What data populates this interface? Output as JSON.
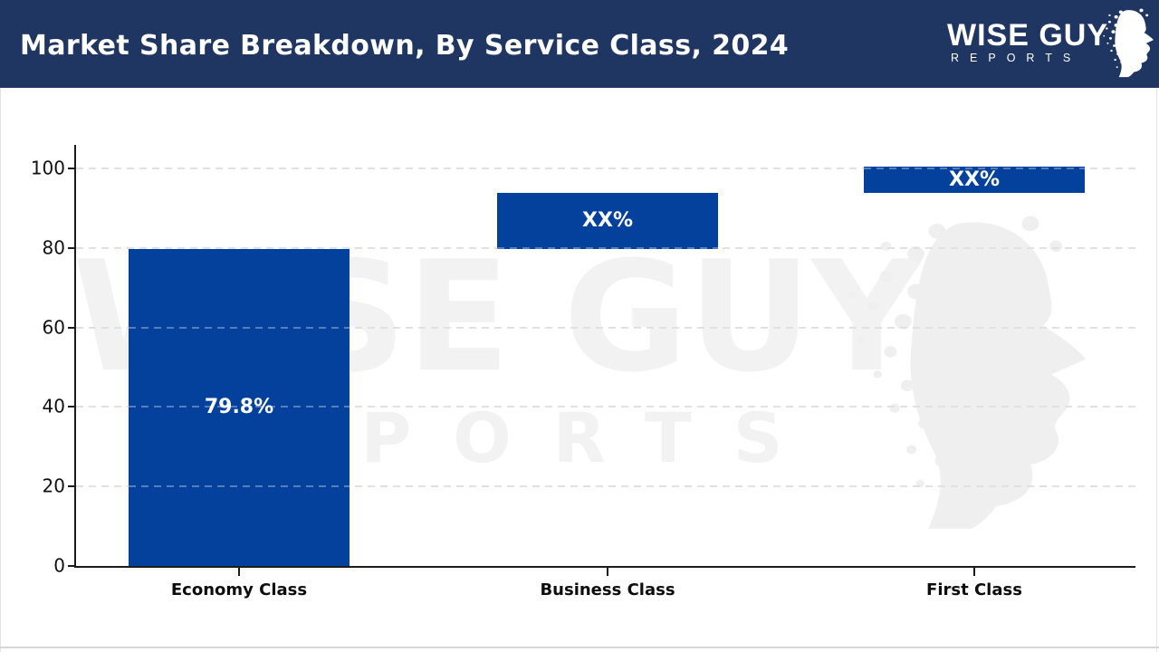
{
  "header": {
    "title": "Market Share Breakdown, By Service Class, 2024",
    "logo": {
      "name": "WISE GUY",
      "sub": "REPORTS"
    }
  },
  "watermark": {
    "line1": "WISE GUY",
    "line2": "REPORTS"
  },
  "chart_data": {
    "type": "bar",
    "subtype": "stacked-percentage-breakdown",
    "title": "Market Share Breakdown, By Service Class, 2024",
    "categories": [
      "Economy Class",
      "Business Class",
      "First Class"
    ],
    "series": [
      {
        "name": "Economy Class",
        "label": "79.8%",
        "start": 0,
        "end": 79.8
      },
      {
        "name": "Business Class",
        "label": "XX%",
        "start": 79.8,
        "end": 93.9
      },
      {
        "name": "First Class",
        "label": "XX%",
        "start": 93.9,
        "end": 100.4
      }
    ],
    "xlabel": "",
    "ylabel": "",
    "yticks": [
      0,
      20,
      40,
      60,
      80,
      100
    ],
    "ylim": [
      0,
      106
    ],
    "grid": {
      "horizontal": true,
      "style": "dashed"
    },
    "legend": "none"
  },
  "colors": {
    "header_bg": "#203662",
    "header_text": "#ffffff",
    "bar": "#04419d",
    "bar_label": "#ffffff",
    "grid": "#e1e1e1",
    "axis": "#1c1c1c",
    "tick_text": "#111111",
    "watermark": "#f2f2f2"
  }
}
